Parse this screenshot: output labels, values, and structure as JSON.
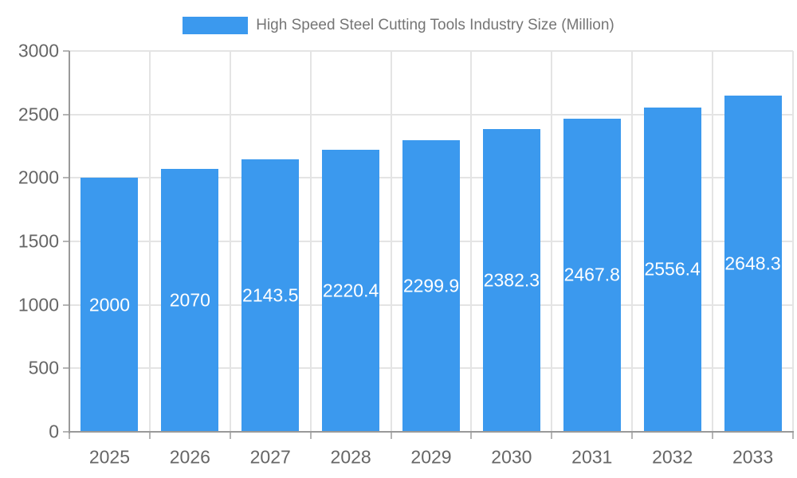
{
  "legend": {
    "label": "High Speed Steel Cutting Tools Industry Size (Million)"
  },
  "colors": {
    "bar": "#3b99ee",
    "grid": "#e4e4e4",
    "axis": "#999999",
    "tick": "#b5b5b5",
    "tick_text": "#666666",
    "legend_text": "#757575",
    "value_label": "#ffffff",
    "background": "#ffffff"
  },
  "chart_data": {
    "type": "bar",
    "title": "High Speed Steel Cutting Tools Industry Size (Million)",
    "categories": [
      "2025",
      "2026",
      "2027",
      "2028",
      "2029",
      "2030",
      "2031",
      "2032",
      "2033"
    ],
    "values": [
      2000,
      2070,
      2143.5,
      2220.4,
      2299.9,
      2382.3,
      2467.8,
      2556.4,
      2648.3
    ],
    "value_labels": [
      "2000",
      "2070",
      "2143.5",
      "2220.4",
      "2299.9",
      "2382.3",
      "2467.8",
      "2556.4",
      "2648.3"
    ],
    "xlabel": "",
    "ylabel": "",
    "ylim": [
      0,
      3000
    ],
    "yticks": [
      0,
      500,
      1000,
      1500,
      2000,
      2500,
      3000
    ],
    "grid": true,
    "legend_position": "top",
    "value_label_position": "center-of-bar"
  }
}
